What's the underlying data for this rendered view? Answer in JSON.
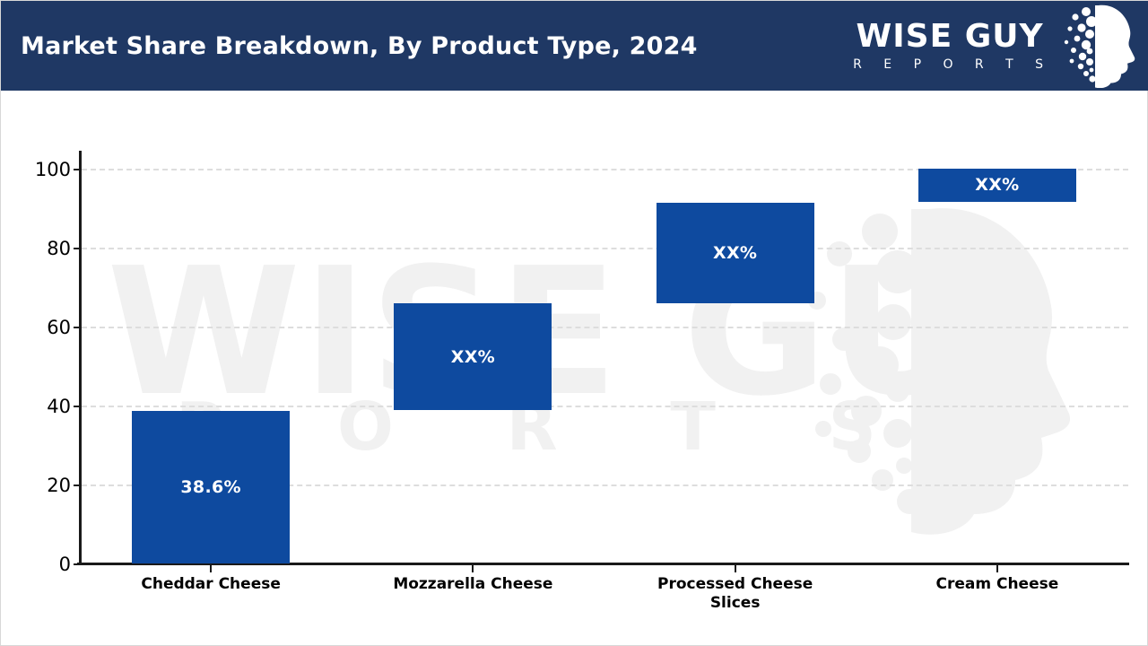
{
  "header": {
    "title": "Market Share Breakdown, By Product Type, 2024",
    "bg_color": "#1f3864",
    "logo": {
      "line1": "WISE GUY",
      "line2": "R E P O R T S"
    }
  },
  "watermark": {
    "line1": "WISE GU",
    "line2": "P O R T S"
  },
  "chart_data": {
    "type": "bar",
    "subtype": "waterfall-floating-bars",
    "title": "Market Share Breakdown, By Product Type, 2024",
    "categories": [
      "Cheddar Cheese",
      "Mozzarella Cheese",
      "Processed Cheese Slices",
      "Cream Cheese"
    ],
    "segments": [
      {
        "category": "Cheddar Cheese",
        "start": 0,
        "end": 38.6,
        "label": "38.6%"
      },
      {
        "category": "Mozzarella Cheese",
        "start": 38.8,
        "end": 65.8,
        "label": "XX%"
      },
      {
        "category": "Processed Cheese Slices",
        "start": 65.9,
        "end": 91.3,
        "label": "XX%"
      },
      {
        "category": "Cream Cheese",
        "start": 91.6,
        "end": 100,
        "label": "XX%"
      }
    ],
    "xlabel": "",
    "ylabel": "",
    "y_ticks": [
      0,
      20,
      40,
      60,
      80,
      100
    ],
    "ylim": [
      0,
      104
    ],
    "grid": "horizontal-dashed",
    "legend": "none",
    "bar_color": "#0e4a9f",
    "bar_label_color": "#ffffff",
    "axis_color": "#1a1a1a"
  }
}
